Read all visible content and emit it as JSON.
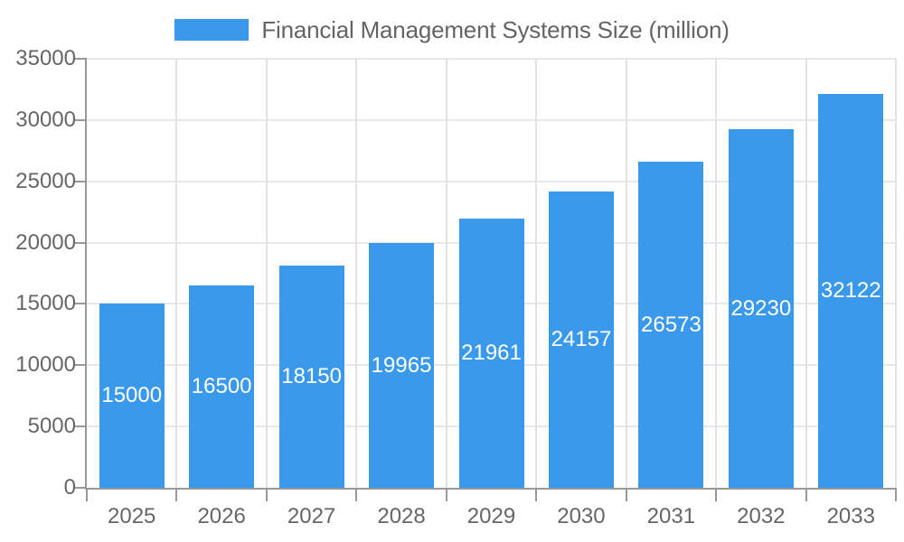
{
  "chart_data": {
    "type": "bar",
    "title": "Financial Management Systems Size (million)",
    "categories": [
      "2025",
      "2026",
      "2027",
      "2028",
      "2029",
      "2030",
      "2031",
      "2032",
      "2033"
    ],
    "values": [
      15000,
      16500,
      18150,
      19965,
      21961,
      24157,
      26573,
      29230,
      32122
    ],
    "xlabel": "",
    "ylabel": "",
    "ylim": [
      0,
      35000
    ],
    "yticks": [
      0,
      5000,
      10000,
      15000,
      20000,
      25000,
      30000,
      35000
    ],
    "grid": true,
    "legend_position": "top",
    "colors": {
      "bar": "#3B99EC",
      "bar_value_label": "#ffffff",
      "axis_label": "#666666",
      "legend_text": "#646464",
      "axis_line": "#999999",
      "h_gridline": "#e8e8e8",
      "v_gridline": "#e2e2e2"
    }
  }
}
